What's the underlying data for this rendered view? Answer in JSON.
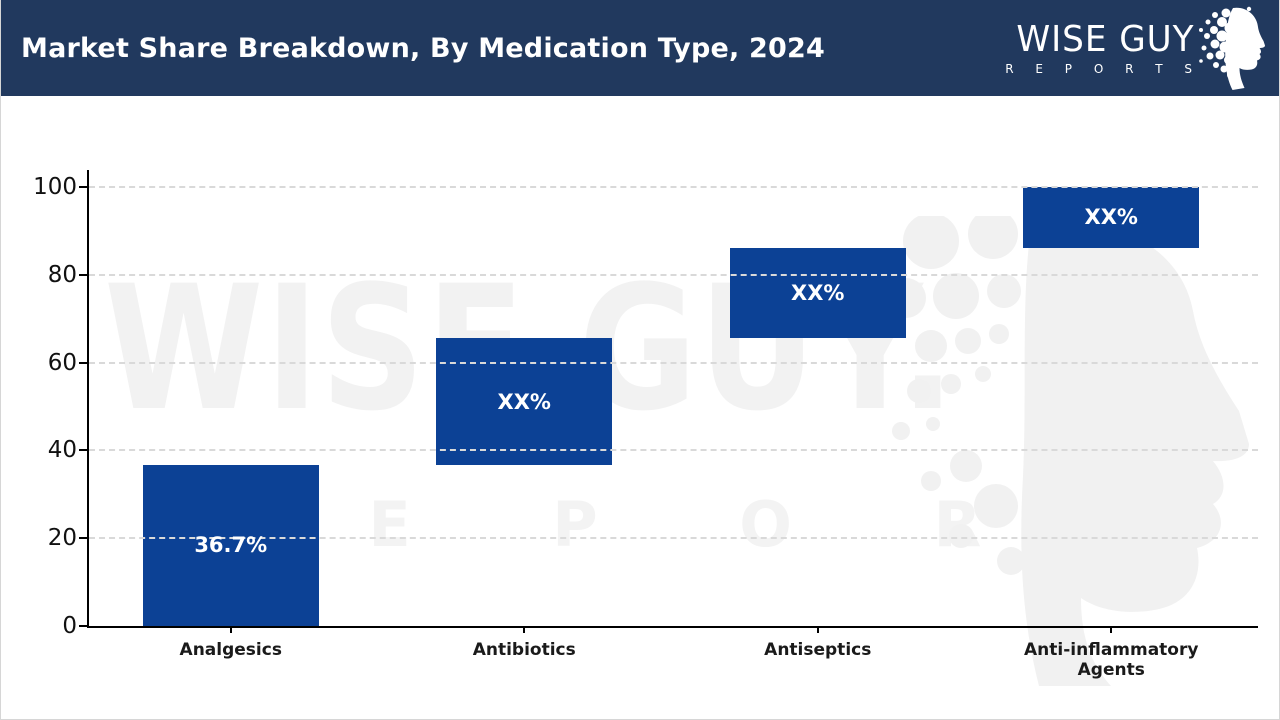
{
  "header": {
    "title": "Market Share Breakdown, By Medication Type, 2024",
    "logo": {
      "name": "WISE GUY",
      "sub": "R E P O R T S"
    }
  },
  "watermark": {
    "line1": "WISE GUY.",
    "line2": "R E P O R T S"
  },
  "colors": {
    "header_bg": "#21395e",
    "bar": "#0c4195",
    "grid": "#d9d9d9",
    "bar_label": "#ffffff",
    "axis": "#000000",
    "watermark": "#f2f2f2"
  },
  "chart_data": {
    "type": "bar",
    "subtype": "waterfall",
    "title": "Market Share Breakdown, By Medication Type, 2024",
    "categories": [
      "Analgesics",
      "Antibiotics",
      "Antiseptics",
      "Anti-inflammatory Agents"
    ],
    "segments": [
      {
        "category": "Analgesics",
        "from": 0,
        "to": 36.7,
        "label": "36.7%"
      },
      {
        "category": "Antibiotics",
        "from": 36.7,
        "to": 65.5,
        "label": "XX%"
      },
      {
        "category": "Antiseptics",
        "from": 65.7,
        "to": 86.0,
        "label": "XX%"
      },
      {
        "category": "Anti-inflammatory Agents",
        "from": 86.2,
        "to": 100,
        "label": "XX%"
      }
    ],
    "ylabel": "",
    "xlabel": "",
    "ylim": [
      0,
      100
    ],
    "yticks": [
      0,
      20,
      40,
      60,
      80,
      100
    ],
    "grid": "horizontal-dashed",
    "legend": null,
    "bar_color": "#0c4195",
    "value_label_color": "#ffffff"
  }
}
